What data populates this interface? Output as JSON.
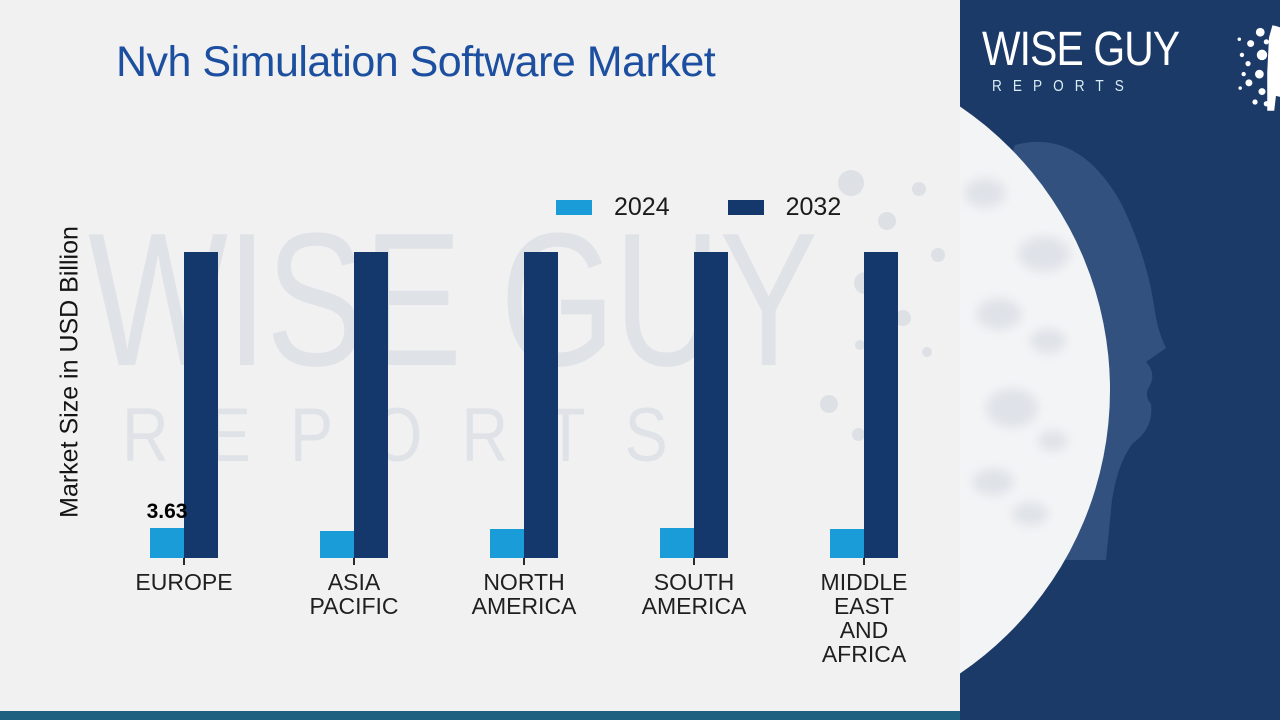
{
  "page": {
    "background": "#f1f1f2",
    "teal_strip_color": "#1d607f",
    "panel_color": "#1b3a67"
  },
  "header": {
    "title": "Nvh Simulation Software Market",
    "title_color": "#1d4fa0"
  },
  "logo": {
    "line1": "WISE GUY",
    "line2": "REPORTS"
  },
  "watermark": {
    "line1": "WISE GUY",
    "line2": "REPORTS"
  },
  "chart_data": {
    "type": "bar",
    "title": "Nvh Simulation Software Market",
    "xlabel": "",
    "ylabel": "Market Size in USD Billion",
    "categories": [
      "EUROPE",
      "ASIA PACIFIC",
      "NORTH AMERICA",
      "SOUTH AMERICA",
      "MIDDLE EAST AND AFRICA"
    ],
    "series": [
      {
        "name": "2024",
        "color": "#1a9cd9",
        "values": [
          3.63,
          3.28,
          3.45,
          3.58,
          3.45
        ]
      },
      {
        "name": "2032",
        "color": "#14386b",
        "values": [
          37,
          37,
          37,
          37,
          37
        ]
      }
    ],
    "ylim": [
      0,
      37
    ],
    "grid": false,
    "legend_position": "top",
    "value_labels": [
      {
        "series": "2024",
        "category": "EUROPE",
        "text": "3.63"
      }
    ]
  }
}
